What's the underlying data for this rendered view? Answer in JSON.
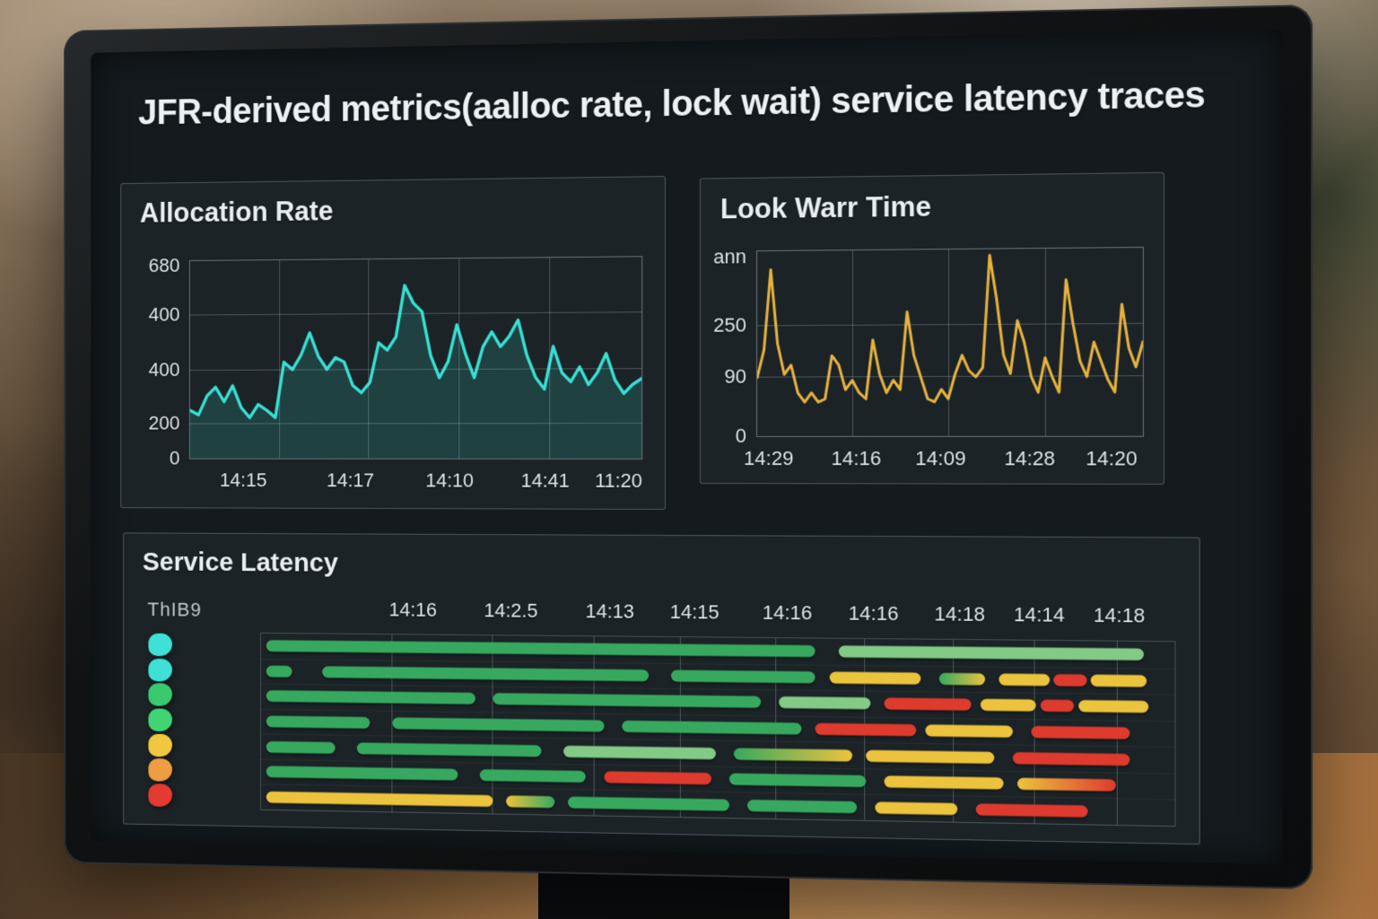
{
  "title": "JFR-derived metrics(aalloc rate, lock wait) service latency traces",
  "panels": {
    "allocation": {
      "title": "Allocation Rate"
    },
    "lock_wait": {
      "title": "Look Warr Time"
    },
    "latency": {
      "title": "Service Latency",
      "corner_label": "ThIB9"
    }
  },
  "colors": {
    "screen_bg": "#141a1e",
    "panel_bg": "#1b2327",
    "teal_line": "#38dfd2",
    "teal_fill": "rgba(56,223,210,0.16)",
    "amber_line": "#e6b23e",
    "bar_green": "#37a95f",
    "bar_light_green": "#82ca85",
    "bar_yellow": "#ecc33c",
    "bar_red": "#df3a2e"
  },
  "chart_data": [
    {
      "id": "allocation_rate",
      "type": "line",
      "title": "Allocation Rate",
      "line_color": "#38dfd2",
      "fill_color": "rgba(56,223,210,0.16)",
      "ylim": [
        0,
        680
      ],
      "y_ticks": [
        "680",
        "400",
        "400",
        "200",
        "0"
      ],
      "y_tick_pos": [
        2,
        27,
        55,
        82,
        100
      ],
      "x_ticks": [
        "14:15",
        "14:17",
        "14:10",
        "14:41",
        "11:20"
      ],
      "x_tick_pos": [
        12,
        36,
        58,
        79,
        95
      ],
      "grid_v": [
        20,
        40,
        60,
        80
      ],
      "grid_h": [
        27,
        55,
        82
      ],
      "values": [
        165,
        150,
        215,
        245,
        195,
        250,
        175,
        140,
        185,
        165,
        140,
        330,
        305,
        355,
        430,
        350,
        305,
        345,
        330,
        250,
        225,
        260,
        395,
        370,
        415,
        590,
        530,
        500,
        350,
        275,
        330,
        455,
        355,
        275,
        380,
        430,
        380,
        415,
        470,
        350,
        275,
        235,
        380,
        290,
        260,
        310,
        250,
        290,
        355,
        265,
        220,
        250,
        270
      ]
    },
    {
      "id": "lock_wait_time",
      "type": "line",
      "title": "Look Warr Time",
      "line_color": "#e6b23e",
      "fill_color": "",
      "ylim": [
        0,
        300
      ],
      "y_ticks": [
        "ann",
        "250",
        "90",
        "0"
      ],
      "y_tick_pos": [
        3,
        40,
        68,
        100
      ],
      "x_ticks": [
        "14:29",
        "14:16",
        "14:09",
        "14:28",
        "14:20"
      ],
      "x_tick_pos": [
        3,
        26,
        48,
        71,
        92
      ],
      "grid_v": [
        25,
        50,
        75
      ],
      "grid_h": [
        40,
        68
      ],
      "values": [
        95,
        140,
        270,
        150,
        100,
        115,
        70,
        55,
        70,
        55,
        60,
        130,
        115,
        75,
        90,
        70,
        60,
        155,
        100,
        70,
        90,
        75,
        200,
        130,
        95,
        60,
        55,
        75,
        60,
        100,
        130,
        105,
        95,
        110,
        290,
        220,
        130,
        100,
        185,
        150,
        95,
        70,
        125,
        95,
        70,
        250,
        180,
        120,
        95,
        150,
        120,
        90,
        70,
        210,
        140,
        110,
        150
      ]
    },
    {
      "id": "service_latency",
      "type": "gantt",
      "title": "Service Latency",
      "x_ticks": [
        "14:16",
        "14:2.5",
        "14:13",
        "14:15",
        "14:16",
        "14:16",
        "14:18",
        "14:14",
        "14:18"
      ],
      "x_tick_pos": [
        14.8,
        26.1,
        37.4,
        47.0,
        57.4,
        67.0,
        76.5,
        85.2,
        93.9
      ],
      "palette": {
        "g": "#37a95f",
        "lg": "#82ca85",
        "y": "#ecc33c",
        "r": "#df3a2e"
      },
      "rows": [
        {
          "dot": "#3fe0d5",
          "segments": [
            [
              0,
              62,
              "g"
            ],
            [
              64.5,
              33,
              "lg"
            ]
          ]
        },
        {
          "dot": "#3fe0d5",
          "segments": [
            [
              0,
              3,
              "g"
            ],
            [
              6.5,
              37,
              "g"
            ],
            [
              46,
              16,
              "g"
            ],
            [
              63.5,
              10,
              "y"
            ],
            [
              75.5,
              5,
              "g-y"
            ],
            [
              82,
              5.5,
              "y"
            ],
            [
              87.8,
              3.6,
              "r"
            ],
            [
              91.8,
              6,
              "y"
            ]
          ]
        },
        {
          "dot": "#3bc96e",
          "segments": [
            [
              0,
              24,
              "g"
            ],
            [
              26,
              30,
              "g"
            ],
            [
              58,
              10,
              "lg"
            ],
            [
              69.5,
              9.5,
              "r"
            ],
            [
              80,
              6,
              "y"
            ],
            [
              86.5,
              3.5,
              "r"
            ],
            [
              90.5,
              7.5,
              "y"
            ]
          ]
        },
        {
          "dot": "#41d475",
          "segments": [
            [
              0,
              12,
              "g"
            ],
            [
              14.5,
              24,
              "g"
            ],
            [
              40.5,
              20,
              "g"
            ],
            [
              62,
              11,
              "r"
            ],
            [
              74,
              9.5,
              "y"
            ],
            [
              85.5,
              10.5,
              "r"
            ]
          ]
        },
        {
          "dot": "#f0c83f",
          "segments": [
            [
              0,
              8,
              "g"
            ],
            [
              10.5,
              21,
              "g"
            ],
            [
              34,
              17,
              "lg"
            ],
            [
              53,
              13,
              "g-y"
            ],
            [
              67.5,
              14,
              "y"
            ],
            [
              83.5,
              12.5,
              "r"
            ]
          ]
        },
        {
          "dot": "#ee9d42",
          "segments": [
            [
              0,
              22,
              "g"
            ],
            [
              24.5,
              12,
              "g"
            ],
            [
              38.5,
              12,
              "r"
            ],
            [
              52.5,
              15,
              "g"
            ],
            [
              69.5,
              13,
              "y"
            ],
            [
              84,
              10.5,
              "y-r"
            ]
          ]
        },
        {
          "dot": "#e53a30",
          "segments": [
            [
              0,
              26,
              "y"
            ],
            [
              27.5,
              5.5,
              "y-g"
            ],
            [
              34.5,
              18,
              "g"
            ],
            [
              54.5,
              12,
              "g"
            ],
            [
              68.5,
              9,
              "y"
            ],
            [
              79.5,
              12,
              "r"
            ]
          ]
        }
      ]
    }
  ]
}
